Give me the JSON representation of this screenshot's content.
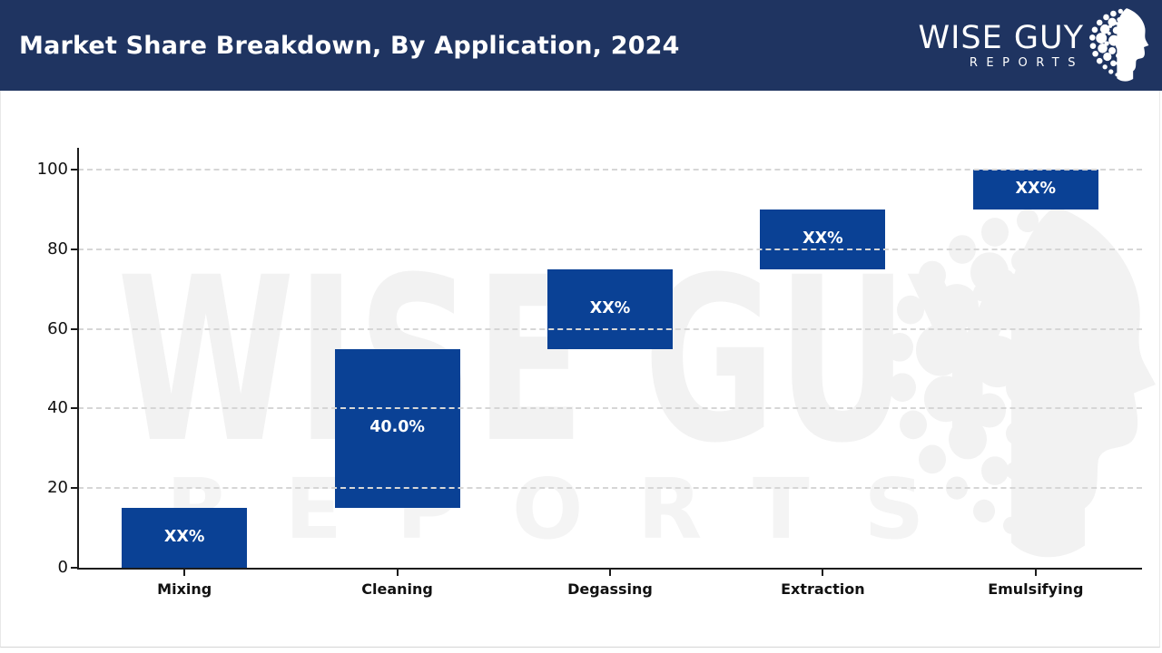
{
  "header": {
    "title": "Market Share Breakdown, By Application, 2024",
    "logo": {
      "primary": "WISE GUY",
      "secondary": "REPORTS"
    }
  },
  "watermark": {
    "primary": "WISE GUY",
    "secondary": "REPORTS"
  },
  "colors": {
    "header_bg": "#1f3461",
    "bar": "#0a4195",
    "bar_label": "#ffffff",
    "grid": "#d6d6d6",
    "axis": "#1c1c1c",
    "watermark": "#f2f2f2"
  },
  "chart_data": {
    "type": "bar",
    "subtype": "waterfall",
    "title": "Market Share Breakdown, By Application, 2024",
    "categories": [
      "Mixing",
      "Cleaning",
      "Degassing",
      "Extraction",
      "Emulsifying"
    ],
    "values": [
      15,
      40,
      20,
      15,
      10
    ],
    "series": [
      {
        "name": "Market Share",
        "segments": [
          {
            "category": "Mixing",
            "start": 0,
            "end": 15,
            "label": "XX%"
          },
          {
            "category": "Cleaning",
            "start": 15,
            "end": 55,
            "label": "40.0%"
          },
          {
            "category": "Degassing",
            "start": 55,
            "end": 75,
            "label": "XX%"
          },
          {
            "category": "Extraction",
            "start": 75,
            "end": 90,
            "label": "XX%"
          },
          {
            "category": "Emulsifying",
            "start": 90,
            "end": 100,
            "label": "XX%"
          }
        ]
      }
    ],
    "xlabel": "",
    "ylabel": "",
    "ylim": [
      0,
      105
    ],
    "yticks": [
      0,
      20,
      40,
      60,
      80,
      100
    ],
    "grid": "horizontal-dashed",
    "legend": "none"
  }
}
